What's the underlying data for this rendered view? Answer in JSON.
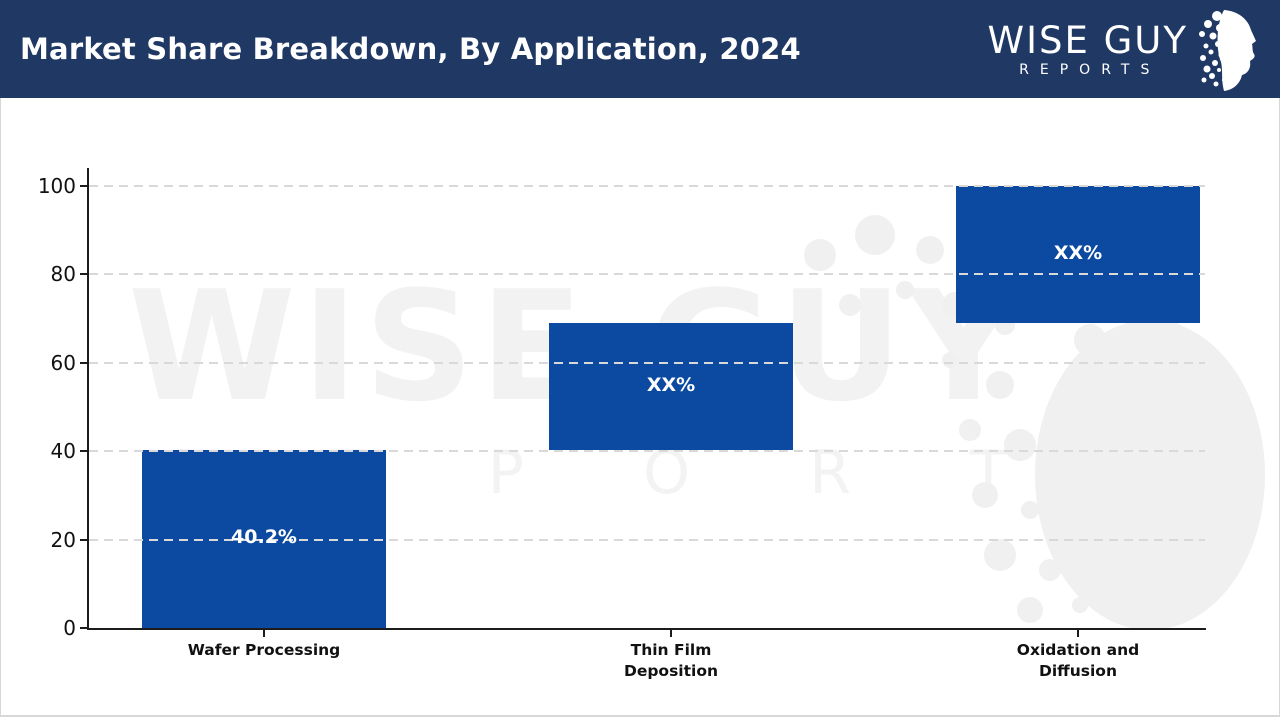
{
  "header": {
    "title": "Market Share Breakdown, By Application, 2024",
    "logo": {
      "name_line": "WISE GUY",
      "reports_line": "REPORTS",
      "head_icon": "dotted-face-profile"
    }
  },
  "watermark": {
    "big_text": "WISE GUY",
    "small_text": "R E P O R T S"
  },
  "chart_data": {
    "type": "bar",
    "variant": "floating_segment_bars",
    "title": "Market Share Breakdown, By Application, 2024",
    "categories": [
      "Wafer Processing",
      "Thin Film\nDeposition",
      "Oxidation and\nDiffusion"
    ],
    "segments": [
      {
        "category": "Wafer Processing",
        "start": 0,
        "end": 40.2,
        "label": "40.2%"
      },
      {
        "category": "Thin Film Deposition",
        "start": 40.2,
        "end": 69,
        "label": "XX%"
      },
      {
        "category": "Oxidation and Diffusion",
        "start": 69,
        "end": 100,
        "label": "XX%"
      }
    ],
    "ylim": [
      0,
      100
    ],
    "yticks": [
      0,
      20,
      40,
      60,
      80,
      100
    ],
    "xlabel": "",
    "ylabel": "",
    "grid": "horizontal-dashed",
    "legend": "none",
    "bar_color": "#0c4aa2",
    "bar_label_color": "#ffffff"
  },
  "colors": {
    "header_bg": "#203864",
    "bar": "#0c4aa2",
    "grid": "#d9d9d9",
    "axis": "#1c1c1c",
    "watermark": "#f2f2f2",
    "page_border": "#d7d7d7"
  }
}
